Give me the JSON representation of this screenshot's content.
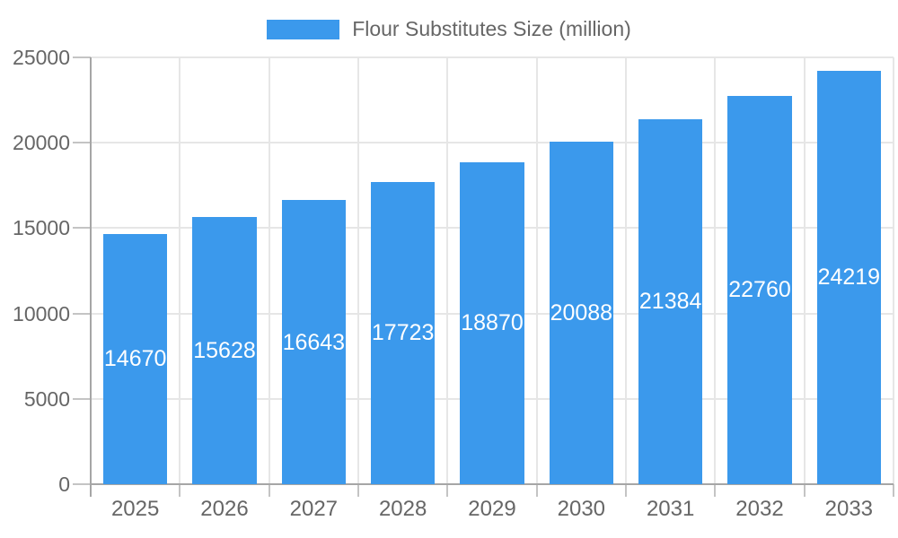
{
  "colors": {
    "bar": "#3b99ec",
    "grid": "#e6e6e6",
    "tick": "#c4c4c4",
    "axis": "#a6a6a6",
    "text": "#666666",
    "bar_label_text": "#ffffff",
    "background": "#ffffff"
  },
  "legend": {
    "label": "Flour Substitutes Size (million)",
    "position": "top"
  },
  "chart_data": {
    "type": "bar",
    "title": "Flour Substitutes Size (million)",
    "categories": [
      "2025",
      "2026",
      "2027",
      "2028",
      "2029",
      "2030",
      "2031",
      "2032",
      "2033"
    ],
    "values": [
      14670,
      15628,
      16643,
      17723,
      18870,
      20088,
      21384,
      22760,
      24219
    ],
    "series": [
      {
        "name": "Flour Substitutes Size (million)",
        "values": [
          14670,
          15628,
          16643,
          17723,
          18870,
          20088,
          21384,
          22760,
          24219
        ]
      }
    ],
    "xlabel": "",
    "ylabel": "",
    "ylim": [
      0,
      25000
    ],
    "yticks": [
      0,
      5000,
      10000,
      15000,
      20000,
      25000
    ],
    "grid": true,
    "legend_position": "top",
    "bar_value_labels_visible": true
  }
}
